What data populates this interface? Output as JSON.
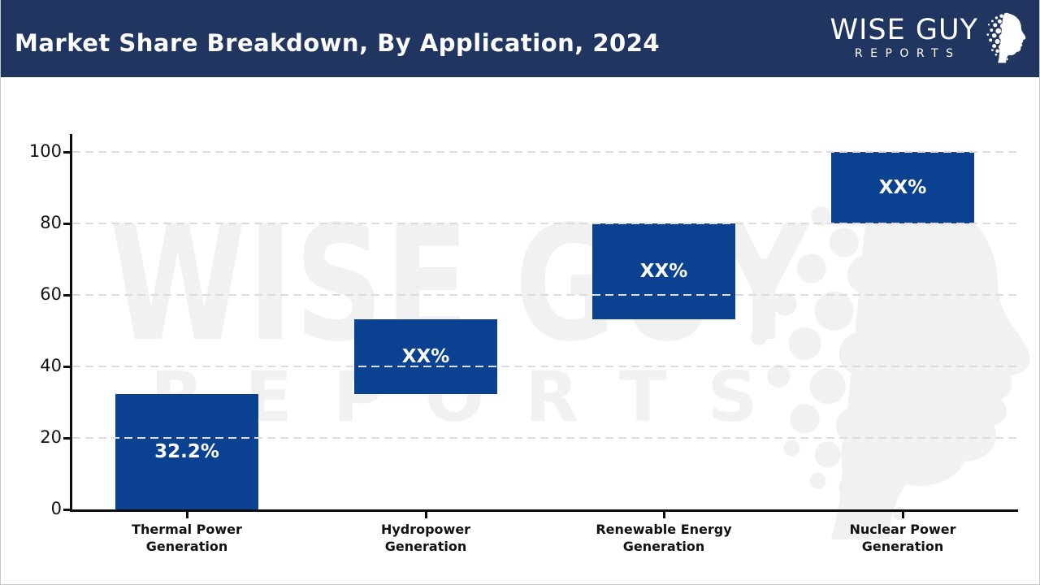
{
  "header": {
    "title": "Market Share Breakdown, By Application, 2024",
    "brand": {
      "name": "WISE GUY",
      "subtitle": "REPORTS"
    }
  },
  "watermark": {
    "name": "WISE GUY",
    "subtitle": "R E P O R T S"
  },
  "colors": {
    "header_bg": "#20355f",
    "bar": "#0a4191",
    "bar_label": "#ffffff",
    "grid": "#dcdcdc",
    "axis": "#0b0b0b",
    "tick_label": "#111111",
    "watermark": "#f1f1f2",
    "border": "#c9c9c9"
  },
  "chart_data": {
    "type": "bar",
    "subtype": "waterfall",
    "title": "Market Share Breakdown, By Application, 2024",
    "categories": [
      "Thermal Power Generation",
      "Hydropower Generation",
      "Renewable Energy Generation",
      "Nuclear Power Generation"
    ],
    "category_lines": [
      [
        "Thermal Power",
        "Generation"
      ],
      [
        "Hydropower",
        "Generation"
      ],
      [
        "Renewable Energy",
        "Generation"
      ],
      [
        "Nuclear Power",
        "Generation"
      ]
    ],
    "segments": [
      {
        "category": "Thermal Power Generation",
        "start": 0,
        "end": 32.2,
        "label": "32.2%"
      },
      {
        "category": "Hydropower Generation",
        "start": 32.2,
        "end": 53.2,
        "label": "XX%"
      },
      {
        "category": "Renewable Energy Generation",
        "start": 53.2,
        "end": 80,
        "label": "XX%"
      },
      {
        "category": "Nuclear Power Generation",
        "start": 80,
        "end": 100,
        "label": "XX%"
      }
    ],
    "ylim": [
      0,
      100
    ],
    "yticks": [
      0,
      20,
      40,
      60,
      80,
      100
    ],
    "xlabel": "",
    "ylabel": "",
    "grid": "horizontal-dashed",
    "legend": "none"
  }
}
